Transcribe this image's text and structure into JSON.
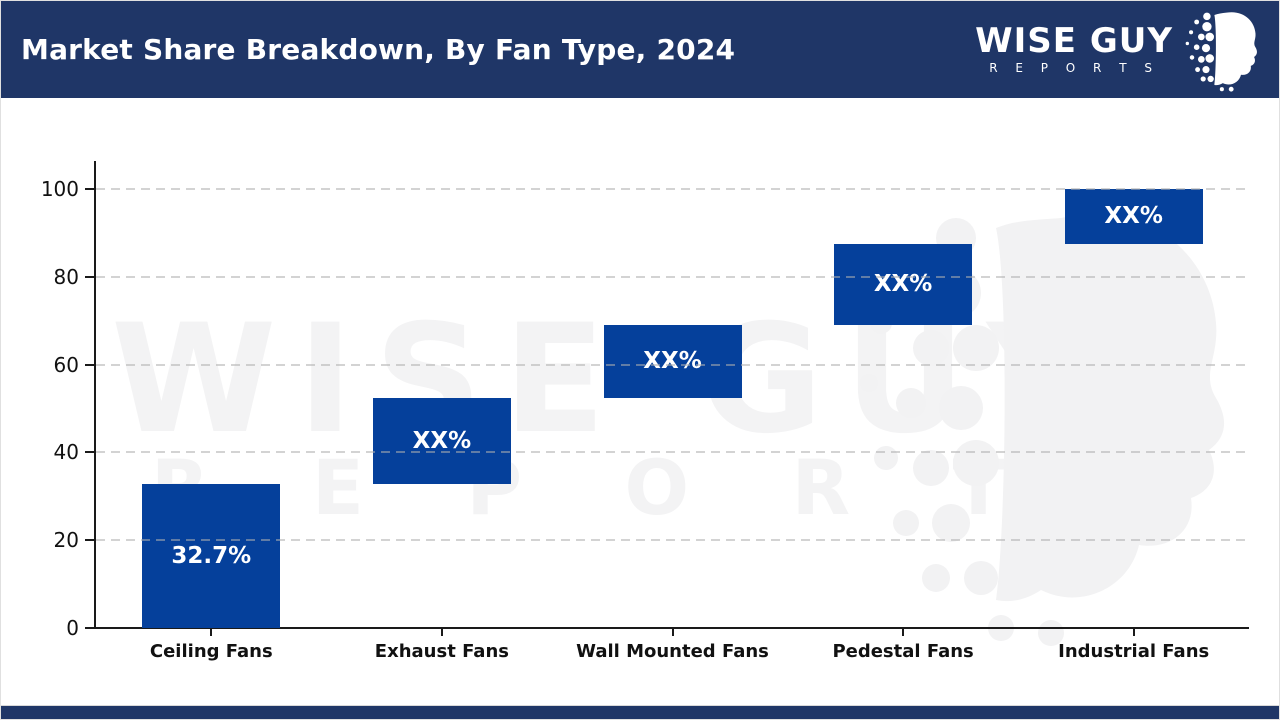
{
  "header": {
    "title": "Market Share Breakdown, By Fan Type, 2024",
    "logo_line1": "WISE GUY",
    "logo_line2": "R E P O R T S"
  },
  "watermark": {
    "line1": "WISE GUY",
    "line2": "R E P O R T S"
  },
  "chart_data": {
    "type": "bar",
    "subtype": "waterfall",
    "title": "Market Share Breakdown, By Fan Type, 2024",
    "categories": [
      "Ceiling Fans",
      "Exhaust Fans",
      "Wall Mounted Fans",
      "Pedestal Fans",
      "Industrial Fans"
    ],
    "segments": [
      {
        "category": "Ceiling Fans",
        "start": 0,
        "end": 32.7,
        "label": "32.7%"
      },
      {
        "category": "Exhaust Fans",
        "start": 32.7,
        "end": 52.5,
        "label": "XX%"
      },
      {
        "category": "Wall Mounted Fans",
        "start": 52.5,
        "end": 69.0,
        "label": "XX%"
      },
      {
        "category": "Pedestal Fans",
        "start": 69.0,
        "end": 87.5,
        "label": "XX%"
      },
      {
        "category": "Industrial Fans",
        "start": 87.5,
        "end": 100.0,
        "label": "XX%"
      }
    ],
    "ylim": [
      0,
      100
    ],
    "yticks": [
      0,
      20,
      40,
      60,
      80,
      100
    ],
    "grid": "horizontal-dashed",
    "legend": "none"
  },
  "colors": {
    "header_bg": "#1f3667",
    "footer_bg": "#1f3667",
    "bar": "#05409b",
    "axis": "#1a1a1a",
    "grid_dash": "#d9d9d9",
    "watermark": "#f3f3f4",
    "title_text": "#ffffff",
    "bar_label": "#ffffff"
  }
}
